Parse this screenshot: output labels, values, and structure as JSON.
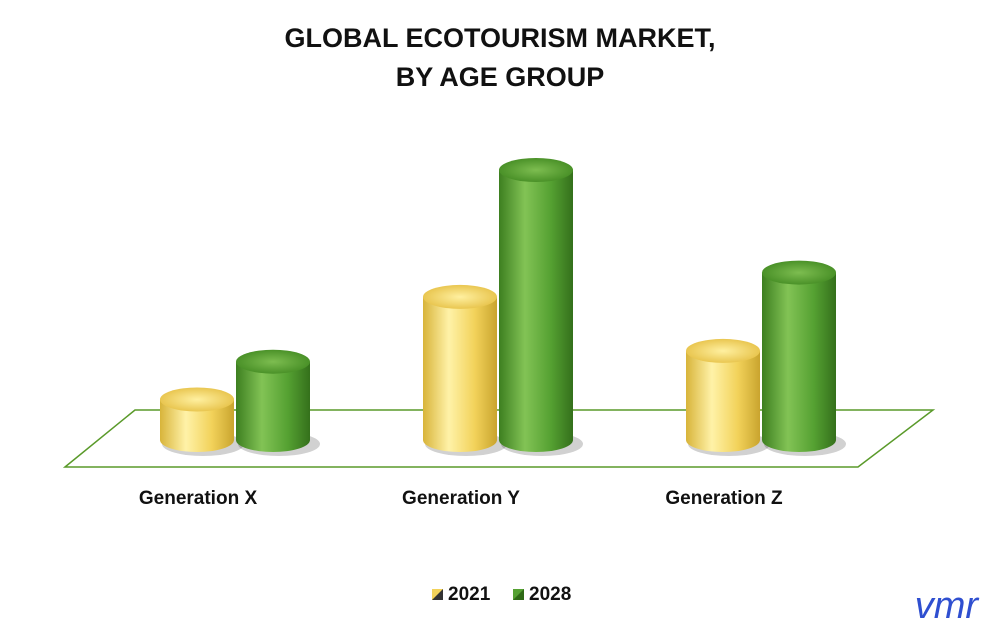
{
  "chart_data": {
    "type": "bar3d",
    "title": [
      "GLOBAL ECOTOURISM MARKET,",
      "BY AGE GROUP"
    ],
    "categories": [
      "Generation X",
      "Generation Y",
      "Generation Z"
    ],
    "series": [
      {
        "name": "2021",
        "color": "#f2d25a",
        "values": [
          15,
          53,
          33
        ]
      },
      {
        "name": "2028",
        "color": "#55a132",
        "values": [
          29,
          100,
          62
        ]
      }
    ],
    "ylim": [
      0,
      100
    ],
    "legend": "bottom",
    "logo": "vmr"
  }
}
